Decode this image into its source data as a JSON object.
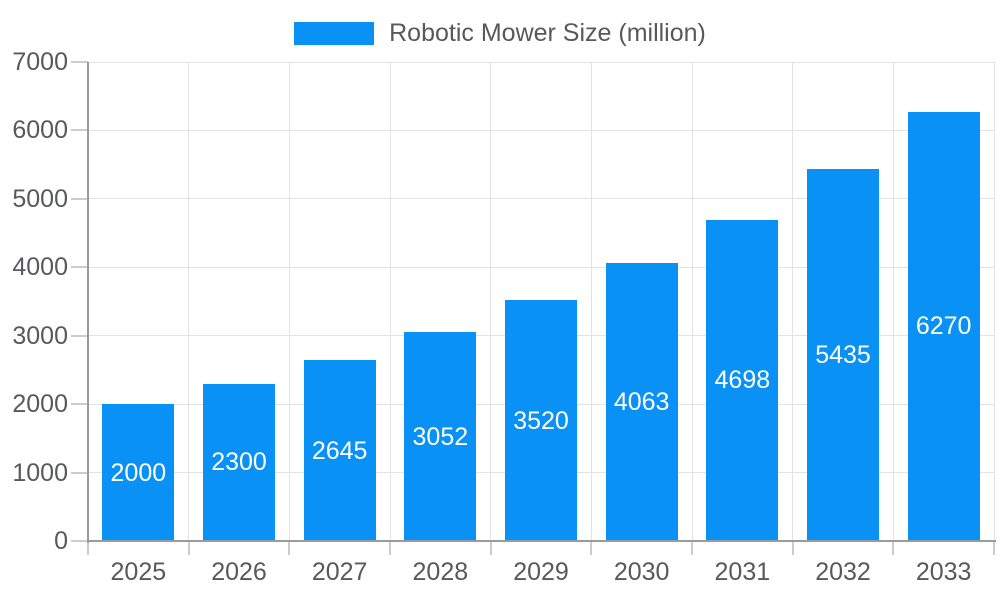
{
  "chart_data": {
    "type": "bar",
    "title": "Robotic Mower Size (million)",
    "legend_position": "top",
    "categories": [
      "2025",
      "2026",
      "2027",
      "2028",
      "2029",
      "2030",
      "2031",
      "2032",
      "2033"
    ],
    "series": [
      {
        "name": "Robotic Mower Size (million)",
        "values": [
          2000,
          2300,
          2645,
          3052,
          3520,
          4063,
          4698,
          5435,
          6270
        ]
      }
    ],
    "bar_value_labels": [
      "2000",
      "2300",
      "2645",
      "3052",
      "3520",
      "4063",
      "4698",
      "5435",
      "6270"
    ],
    "xlabel": "",
    "ylabel": "",
    "ylim": [
      0,
      7000
    ],
    "yticks": [
      0,
      1000,
      2000,
      3000,
      4000,
      5000,
      6000,
      7000
    ],
    "grid": true,
    "colors": {
      "bar": "#0A91F5",
      "bar_label": "#FFFFFF",
      "axis_text": "#58595B",
      "grid_line": "#E3E3E3",
      "tick_mark": "#CCCCCC",
      "axis_line": "#9A9A9A",
      "background": "#FFFFFF"
    }
  }
}
